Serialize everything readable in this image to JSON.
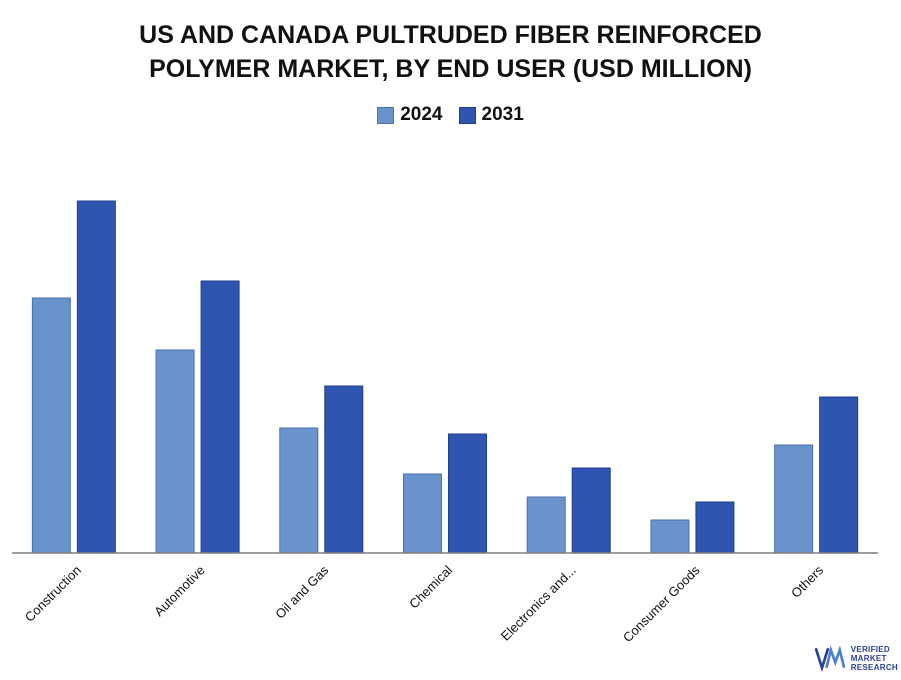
{
  "title_line1": "US AND CANADA PULTRUDED FIBER REINFORCED",
  "title_line2": "POLYMER MARKET, BY END USER (USD MILLION)",
  "colors": {
    "series_2024": "#6a93cc",
    "series_2031": "#2f55b0",
    "axis": "#7f7f7f"
  },
  "logo": {
    "line1": "VERIFIED",
    "line2": "MARKET",
    "line3": "RESEARCH",
    "reg": "®"
  },
  "chart_data": {
    "type": "bar",
    "title": "US AND CANADA PULTRUDED FIBER REINFORCED POLYMER MARKET, BY END USER (USD MILLION)",
    "categories": [
      "Construction",
      "Automotive",
      "Oil and Gas",
      "Chemical",
      "Electronics and...",
      "Consumer Goods",
      "Others"
    ],
    "series": [
      {
        "name": "2024",
        "values": [
          255,
          203,
          125,
          79,
          56,
          33,
          108
        ]
      },
      {
        "name": "2031",
        "values": [
          352,
          272,
          167,
          119,
          85,
          51,
          156
        ]
      }
    ],
    "ylim": [
      0,
      352
    ],
    "grid": false,
    "legend": "top-center"
  }
}
